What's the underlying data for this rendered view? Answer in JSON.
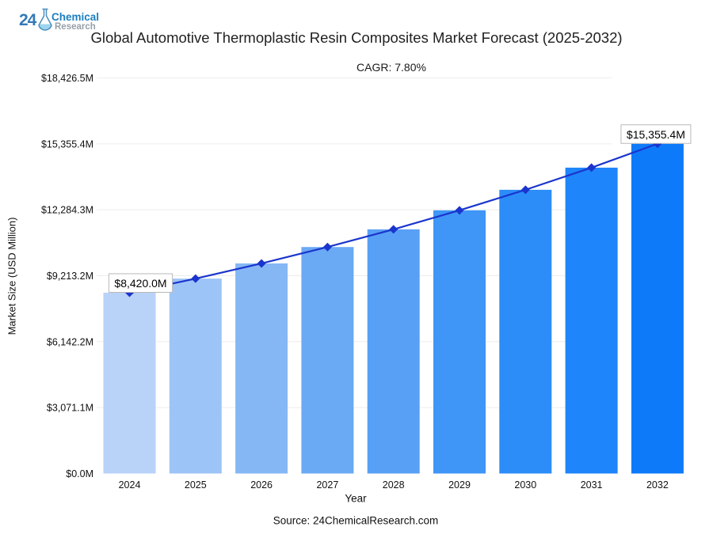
{
  "logo": {
    "number": "24",
    "word1": "Chemical",
    "word2": "Research"
  },
  "header": {
    "title": "Global Automotive Thermoplastic Resin Composites Market Forecast (2025-2032)",
    "subtitle": "CAGR: 7.80%"
  },
  "footer": {
    "source": "Source: 24ChemicalResearch.com"
  },
  "chart_data": {
    "type": "bar",
    "overlay": "line",
    "title": "Global Automotive Thermoplastic Resin Composites Market Forecast (2025-2032)",
    "subtitle": "CAGR: 7.80%",
    "xlabel": "Year",
    "ylabel": "Market Size (USD Million)",
    "categories": [
      "2024",
      "2025",
      "2026",
      "2027",
      "2028",
      "2029",
      "2030",
      "2031",
      "2032"
    ],
    "values": [
      8420.0,
      9076.8,
      9784.8,
      10548.0,
      11370.7,
      12257.6,
      13213.7,
      14244.4,
      15355.4
    ],
    "values_note": "2024 and 2032 labeled on chart; intermediate bars estimated from 7.80% CAGR",
    "bar_colors": [
      "#b9d2f8",
      "#9dc4f6",
      "#85b7f5",
      "#6aa9f4",
      "#58a0f5",
      "#3f96f7",
      "#2c8df8",
      "#1e85fa",
      "#0d7bf9"
    ],
    "line_color": "#1a35cd",
    "grid": true,
    "grid_color": "#ededed",
    "ylim": [
      0,
      18426.5
    ],
    "yticks": [
      0,
      3071.1,
      6142.2,
      9213.2,
      12284.3,
      15355.4,
      18426.5
    ],
    "ytick_labels": [
      "$0.0M",
      "$3,071.1M",
      "$6,142.2M",
      "$9,213.2M",
      "$12,284.3M",
      "$15,355.4M",
      "$18,426.5M"
    ],
    "legend": null,
    "data_labels": [
      {
        "index": 0,
        "text": "$8,420.0M"
      },
      {
        "index": 8,
        "text": "$15,355.4M"
      }
    ]
  }
}
